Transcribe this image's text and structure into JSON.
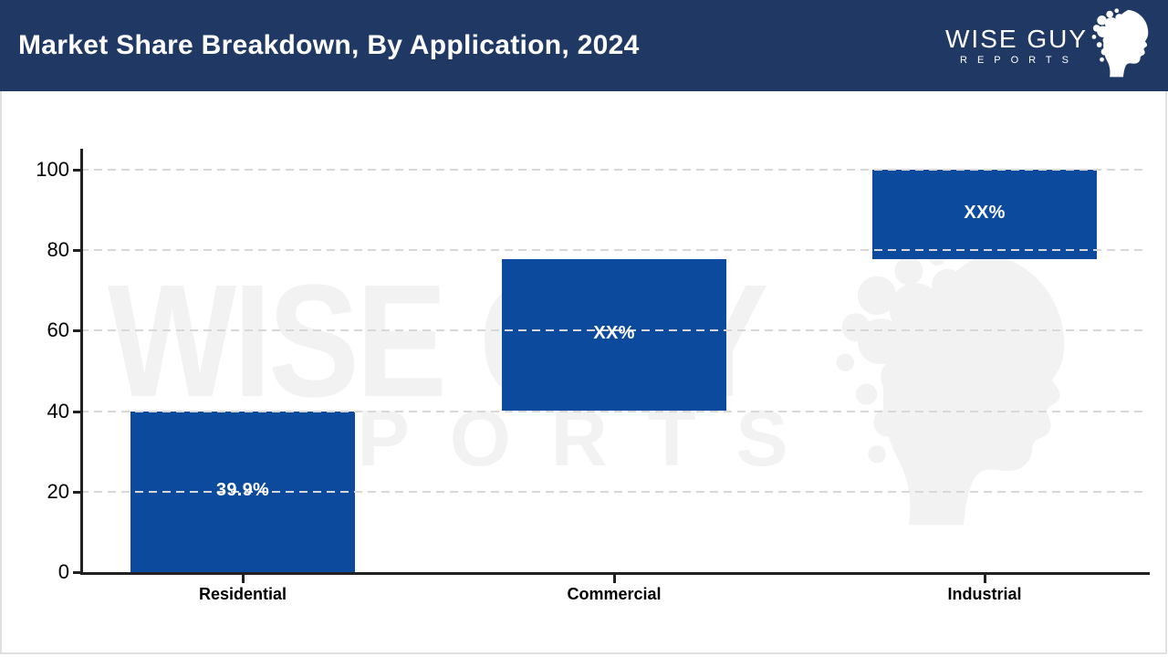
{
  "header": {
    "title": "Market Share Breakdown, By Application, 2024",
    "bg_color": "#1f3864",
    "logo": {
      "line1": "WISE GUY",
      "line2": "REPORTS"
    }
  },
  "watermark": {
    "line1": "WISE GUY",
    "line2": "REPORTS",
    "color": "#f2f2f2"
  },
  "chart_data": {
    "type": "bar",
    "subtype": "floating-waterfall",
    "title": "Market Share Breakdown, By Application, 2024",
    "categories": [
      "Residential",
      "Commercial",
      "Industrial"
    ],
    "bars": [
      {
        "category": "Residential",
        "start": 0,
        "end": 39.9,
        "label": "39.9%"
      },
      {
        "category": "Commercial",
        "start": 40.1,
        "end": 77.7,
        "label": "XX%"
      },
      {
        "category": "Industrial",
        "start": 77.7,
        "end": 100,
        "label": "XX%"
      }
    ],
    "xlabel": "",
    "ylabel": "",
    "ylim": [
      0,
      100
    ],
    "yticks": [
      0,
      20,
      40,
      60,
      80,
      100
    ],
    "grid": "horizontal-dashed",
    "legend": "none",
    "bar_color": "#0c4a9e",
    "bar_label_color": "#ffffff",
    "grid_color": "#d8d8d8",
    "axis_color": "#212121"
  }
}
